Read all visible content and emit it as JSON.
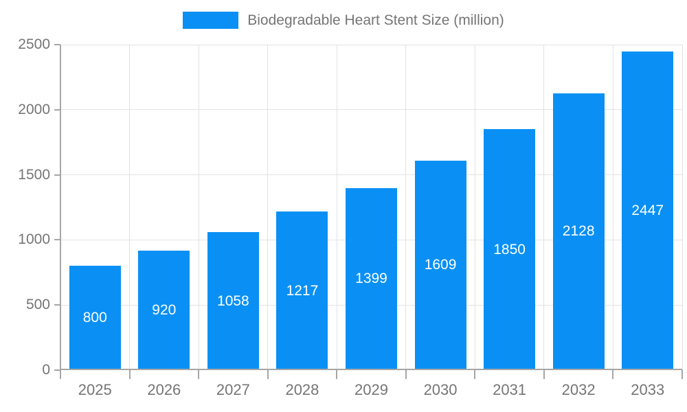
{
  "chart_data": {
    "type": "bar",
    "title": "",
    "legend_label": "Biodegradable Heart Stent Size (million)",
    "categories": [
      "2025",
      "2026",
      "2027",
      "2028",
      "2029",
      "2030",
      "2031",
      "2032",
      "2033"
    ],
    "values": [
      800,
      920,
      1058,
      1217,
      1399,
      1609,
      1850,
      2128,
      2447
    ],
    "xlabel": "",
    "ylabel": "",
    "ylim": [
      0,
      2500
    ],
    "yticks": [
      0,
      500,
      1000,
      1500,
      2000,
      2500
    ],
    "grid": true,
    "legend_position": "top-center",
    "value_labels": "inside-center",
    "colors": {
      "bar": "#0a90f4",
      "value_label": "#ffffff",
      "grid": "#e2e2e2",
      "axis": "#a6a6a6",
      "tick_label": "#757575",
      "legend_label": "#757575",
      "background": "#ffffff"
    }
  }
}
